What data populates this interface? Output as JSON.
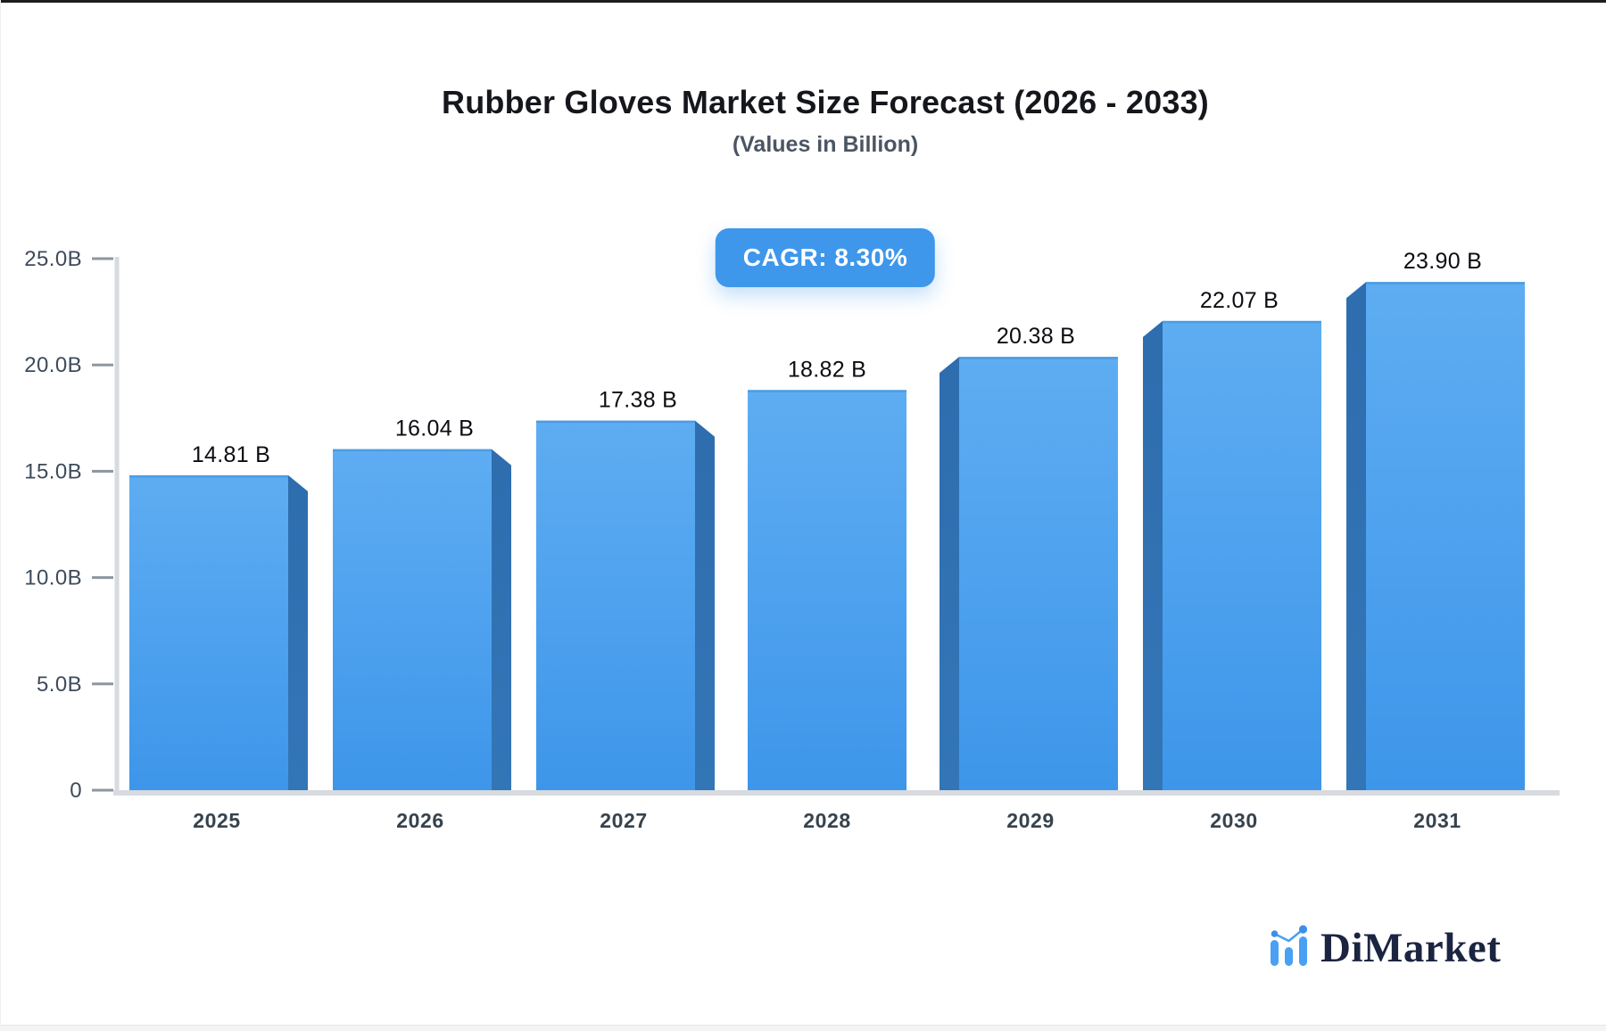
{
  "chart_data": {
    "type": "bar",
    "title": "Rubber Gloves Market Size Forecast (2026 - 2033)",
    "subtitle": "(Values in Billion)",
    "badge_label": "CAGR: 8.30%",
    "categories": [
      "2025",
      "2026",
      "2027",
      "2028",
      "2029",
      "2030",
      "2031"
    ],
    "values": [
      14.81,
      16.04,
      17.38,
      18.82,
      20.38,
      22.07,
      23.9
    ],
    "value_labels": [
      "14.81 B",
      "16.04 B",
      "17.38 B",
      "18.82 B",
      "20.38 B",
      "22.07 B",
      "23.90 B"
    ],
    "unit": "Billion",
    "ylim": [
      0,
      25
    ],
    "yticks": [
      {
        "value": 25,
        "label": "25.0B"
      },
      {
        "value": 20,
        "label": "20.0B"
      },
      {
        "value": 15,
        "label": "15.0B"
      },
      {
        "value": 10,
        "label": "10.0B"
      },
      {
        "value": 5,
        "label": "5.0B"
      },
      {
        "value": 0,
        "label": "0"
      }
    ],
    "grid": false,
    "legend": false,
    "bar_style": "3d-bevel",
    "xlabel": "",
    "ylabel": ""
  },
  "logo": {
    "text": "DiMarket",
    "icon": "dimarket-bars-trend-icon"
  },
  "colors": {
    "background": "#ffffff",
    "bar_top": "#5eadf2",
    "bar_bottom": "#3e96ea",
    "bar_edge": "#4c9ce3",
    "bevel_dark": "#2e6dae",
    "bevel_dark2": "#3376b7",
    "axis_line": "#d7dade",
    "tick": "#8c96a1",
    "y_label": "#3e4b5b",
    "x_label": "#36434e",
    "value_label": "#0b0d12",
    "badge_bg": "#3e97ea",
    "badge_text": "#ffffff",
    "title": "#16171c",
    "subtitle": "#4b5563",
    "logo_text": "#1b2440",
    "logo_blue": "#49a1f4",
    "logo_dot": "#3e8fe8"
  }
}
